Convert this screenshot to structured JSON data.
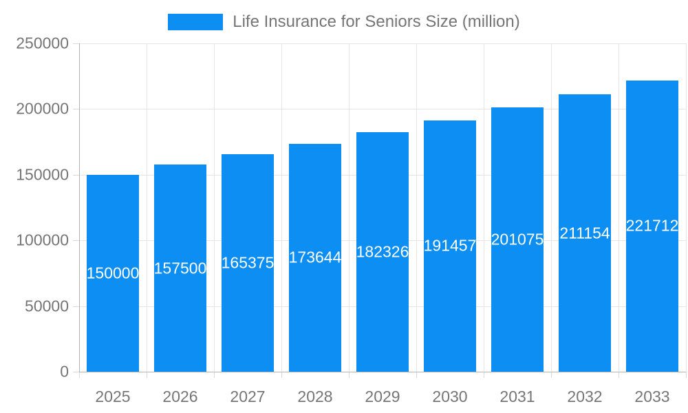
{
  "legend": {
    "label": "Life Insurance for Seniors Size (million)"
  },
  "chart_data": {
    "type": "bar",
    "title": "Life Insurance for Seniors Size (million)",
    "series_name": "Life Insurance for Seniors Size (million)",
    "categories": [
      "2025",
      "2026",
      "2027",
      "2028",
      "2029",
      "2030",
      "2031",
      "2032",
      "2033"
    ],
    "values": [
      150000,
      157500,
      165375,
      173644,
      182326,
      191457,
      201075,
      211154,
      221712
    ],
    "value_labels": [
      "150000",
      "157500",
      "165375",
      "173644",
      "182326",
      "191457",
      "201075",
      "211154",
      "221712"
    ],
    "xlabel": "",
    "ylabel": "",
    "ylim": [
      0,
      250000
    ],
    "yticks": [
      0,
      50000,
      100000,
      150000,
      200000,
      250000
    ],
    "ytick_labels": [
      "0",
      "50000",
      "100000",
      "150000",
      "200000",
      "250000"
    ],
    "grid": true,
    "legend_position": "top",
    "colors": {
      "bar": "#0d8ef2",
      "value_label": "#ffffff",
      "grid": "#e5e5e5",
      "axis": "#b3b3b3",
      "tick_mark": "#d9d9d9",
      "tick_text": "#757575"
    }
  }
}
